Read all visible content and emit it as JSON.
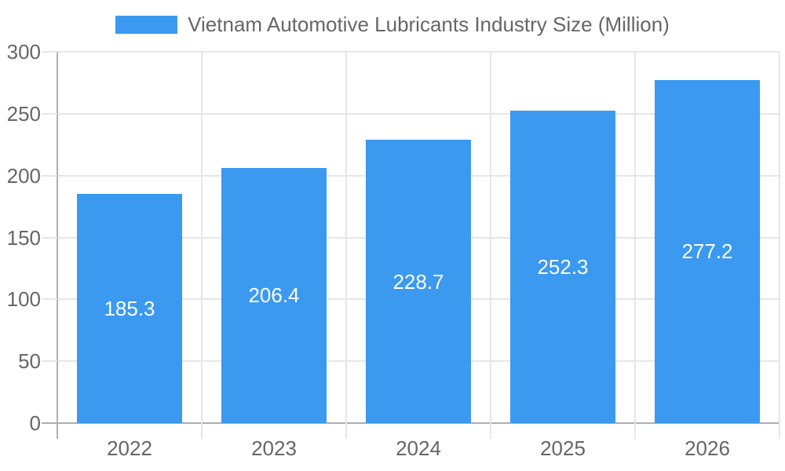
{
  "chart_data": {
    "type": "bar",
    "title": "Vietnam Automotive Lubricants Industry Size (Million)",
    "legend_position": "top",
    "categories": [
      "2022",
      "2023",
      "2024",
      "2025",
      "2026"
    ],
    "series": [
      {
        "name": "Vietnam Automotive Lubricants Industry Size (Million)",
        "values": [
          185.3,
          206.4,
          228.7,
          252.3,
          277.2
        ]
      }
    ],
    "value_labels": [
      "185.3",
      "206.4",
      "228.7",
      "252.3",
      "277.2"
    ],
    "xlabel": "",
    "ylabel": "",
    "ylim": [
      0,
      300
    ],
    "yticks": [
      0,
      50,
      100,
      150,
      200,
      250,
      300
    ],
    "grid": true,
    "colors": {
      "bar": "#3B99F0",
      "bar_value_text": "#FFFFFF",
      "axis_text": "#666666",
      "gridline": "#E6E6E6",
      "zero_line": "#AFAFAF"
    }
  }
}
